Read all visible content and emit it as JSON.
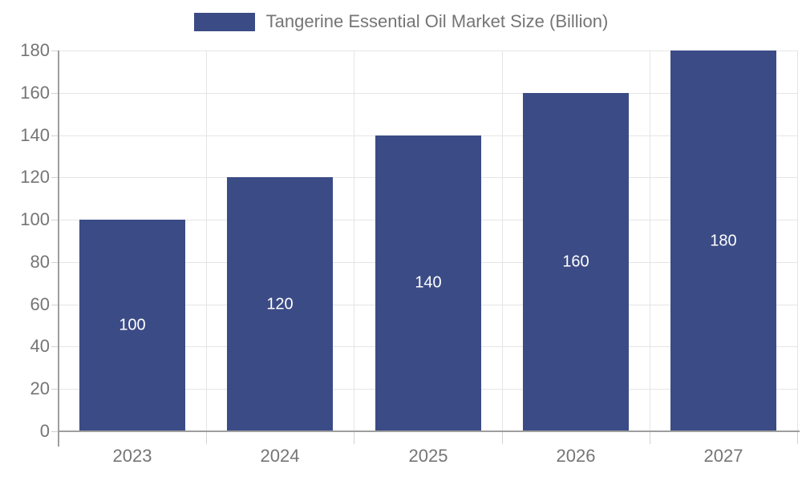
{
  "chart_data": {
    "type": "bar",
    "title": "Tangerine Essential Oil Market Size (Billion)",
    "categories": [
      "2023",
      "2024",
      "2025",
      "2026",
      "2027"
    ],
    "values": [
      100,
      120,
      140,
      160,
      180
    ],
    "bar_labels": [
      "100",
      "120",
      "140",
      "160",
      "180"
    ],
    "xlabel": "",
    "ylabel": "",
    "ylim": [
      0,
      180
    ],
    "yticks": [
      0,
      20,
      40,
      60,
      80,
      100,
      120,
      140,
      160,
      180
    ],
    "grid": true,
    "legend_position": "top-center",
    "legend_entries": [
      "Tangerine Essential Oil Market Size (Billion)"
    ],
    "colors": {
      "bar": "#3B4B86",
      "bar_label": "#FFFFFF",
      "axis": "#9E9E9E",
      "grid": "#E5E5E5",
      "tick": "#D2D2D2",
      "tick_label": "#757575",
      "legend_text": "#757575",
      "background": "#FFFFFF"
    }
  }
}
